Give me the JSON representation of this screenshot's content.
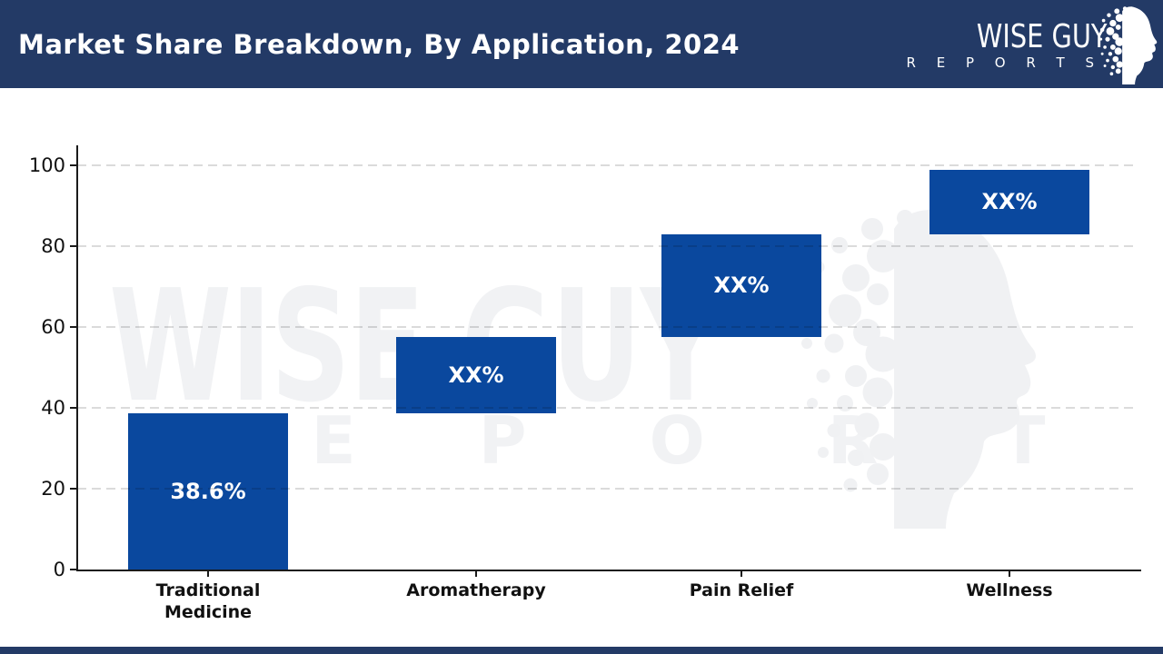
{
  "header": {
    "title": "Market Share Breakdown, By Application, 2024",
    "logo": {
      "name": "WISE GUY",
      "subname": "R E P O R T S",
      "icon": "wiseguy-head-icon"
    }
  },
  "watermark": {
    "line1": "WISE GUY",
    "line2": "R E P O R T S",
    "icon": "wiseguy-head-icon"
  },
  "chart_data": {
    "type": "bar",
    "subtype": "waterfall-floating-bars",
    "title": "Market Share Breakdown, By Application, 2024",
    "categories": [
      "Traditional Medicine",
      "Aromatherapy",
      "Pain Relief",
      "Wellness"
    ],
    "category_lines": [
      [
        "Traditional",
        "Medicine"
      ],
      [
        "Aromatherapy"
      ],
      [
        "Pain Relief"
      ],
      [
        "Wellness"
      ]
    ],
    "segments": [
      {
        "category": "Traditional Medicine",
        "start": 0,
        "end": 38.6,
        "label": "38.6%"
      },
      {
        "category": "Aromatherapy",
        "start": 38.6,
        "end": 57.5,
        "label": "XX%"
      },
      {
        "category": "Pain Relief",
        "start": 57.5,
        "end": 83.0,
        "label": "XX%"
      },
      {
        "category": "Wellness",
        "start": 83.0,
        "end": 98.9,
        "label": "XX%"
      }
    ],
    "yticks": [
      0,
      20,
      40,
      60,
      80,
      100
    ],
    "ylim": [
      0,
      105
    ],
    "xlabel": "",
    "ylabel": "",
    "grid": "horizontal-dashed",
    "legend": "none",
    "bar_color": "#0a489e",
    "bar_label_color": "#ffffff",
    "header_color": "#233a66",
    "axis_color": "#1a1a1a",
    "background": "#ffffff"
  }
}
